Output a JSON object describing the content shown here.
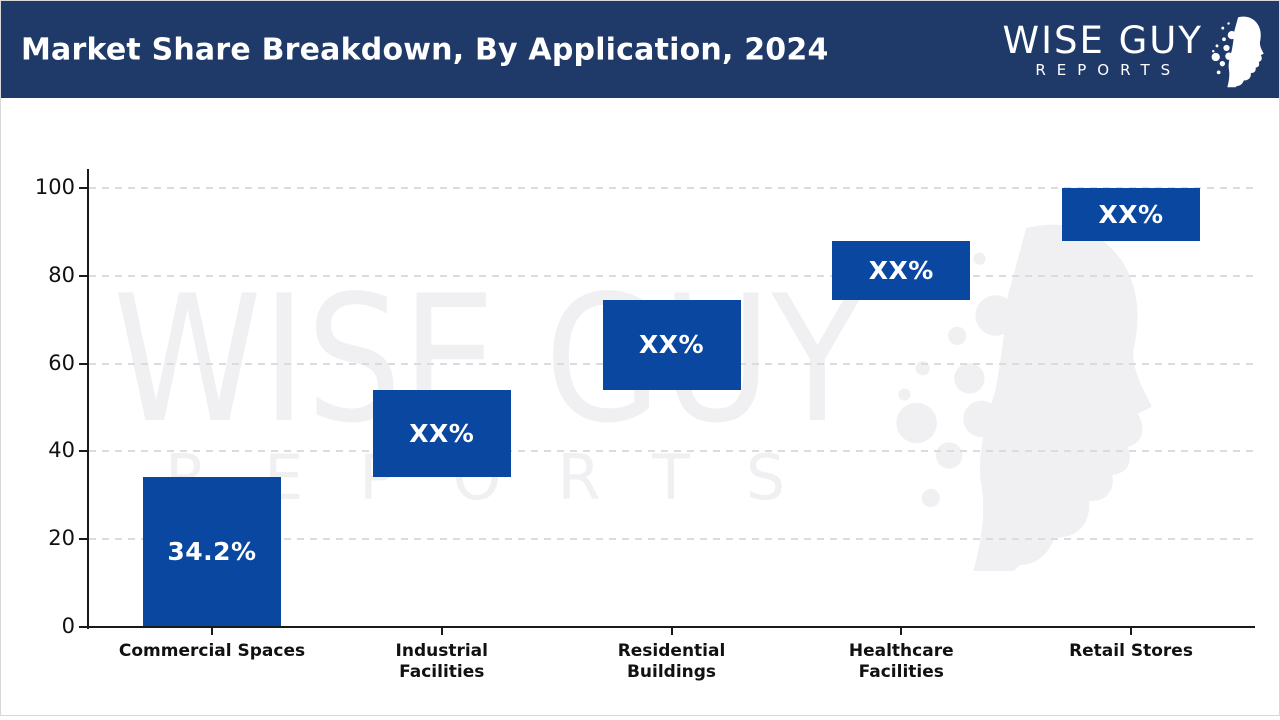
{
  "header": {
    "title": "Market Share Breakdown, By Application, 2024",
    "bg_color": "#1f3a68",
    "brand": {
      "name": "WISE GUY",
      "subtitle": "REPORTS"
    }
  },
  "watermark": {
    "line1": "WISE GUY",
    "line2": "REPORTS"
  },
  "chart_data": {
    "type": "bar",
    "subtype": "waterfall",
    "title": "Market Share Breakdown, By Application, 2024",
    "xlabel": "",
    "ylabel": "",
    "ylim": [
      0,
      100
    ],
    "yticks": [
      0,
      20,
      40,
      60,
      80,
      100
    ],
    "grid": "horizontal-dashed",
    "bar_color": "#0a47a0",
    "bar_label_color": "#ffffff",
    "categories": [
      "Commercial Spaces",
      "Industrial\nFacilities",
      "Residential\nBuildings",
      "Healthcare\nFacilities",
      "Retail Stores"
    ],
    "bars": [
      {
        "category": "Commercial Spaces",
        "start": 0,
        "end": 34.2,
        "label": "34.2%"
      },
      {
        "category": "Industrial Facilities",
        "start": 34.2,
        "end": 54,
        "label": "XX%"
      },
      {
        "category": "Residential Buildings",
        "start": 54,
        "end": 74.5,
        "label": "XX%"
      },
      {
        "category": "Healthcare Facilities",
        "start": 74.5,
        "end": 88,
        "label": "XX%"
      },
      {
        "category": "Retail Stores",
        "start": 88,
        "end": 100,
        "label": "XX%"
      }
    ]
  }
}
